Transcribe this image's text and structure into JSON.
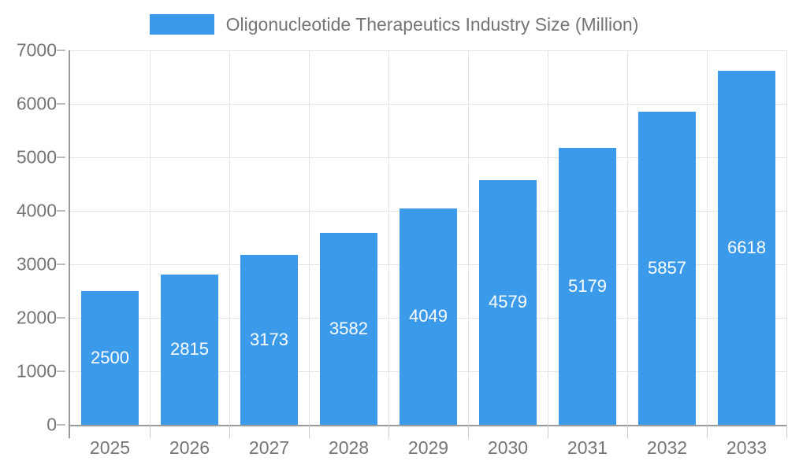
{
  "chart_data": {
    "type": "bar",
    "title": "",
    "legend": {
      "label": "Oligonucleotide Therapeutics Industry Size (Million)",
      "position": "top"
    },
    "categories": [
      "2025",
      "2026",
      "2027",
      "2028",
      "2029",
      "2030",
      "2031",
      "2032",
      "2033"
    ],
    "series": [
      {
        "name": "Oligonucleotide Therapeutics Industry Size (Million)",
        "values": [
          2500,
          2815,
          3173,
          3582,
          4049,
          4579,
          5179,
          5857,
          6618
        ]
      }
    ],
    "value_labels_shown": true,
    "xlabel": "",
    "ylabel": "",
    "ylim": [
      0,
      7000
    ],
    "ytick_step": 1000,
    "ytick_labels": [
      "0",
      "1000",
      "2000",
      "3000",
      "4000",
      "5000",
      "6000",
      "7000"
    ],
    "grid": true,
    "legend_position": "top",
    "colors": {
      "bar": "#3B9AEA",
      "value_label": "#FFFFFF",
      "axis_text": "#757575",
      "axis_line": "#999999",
      "gridline": "#E3E3E3",
      "background": "#FFFFFF"
    }
  }
}
